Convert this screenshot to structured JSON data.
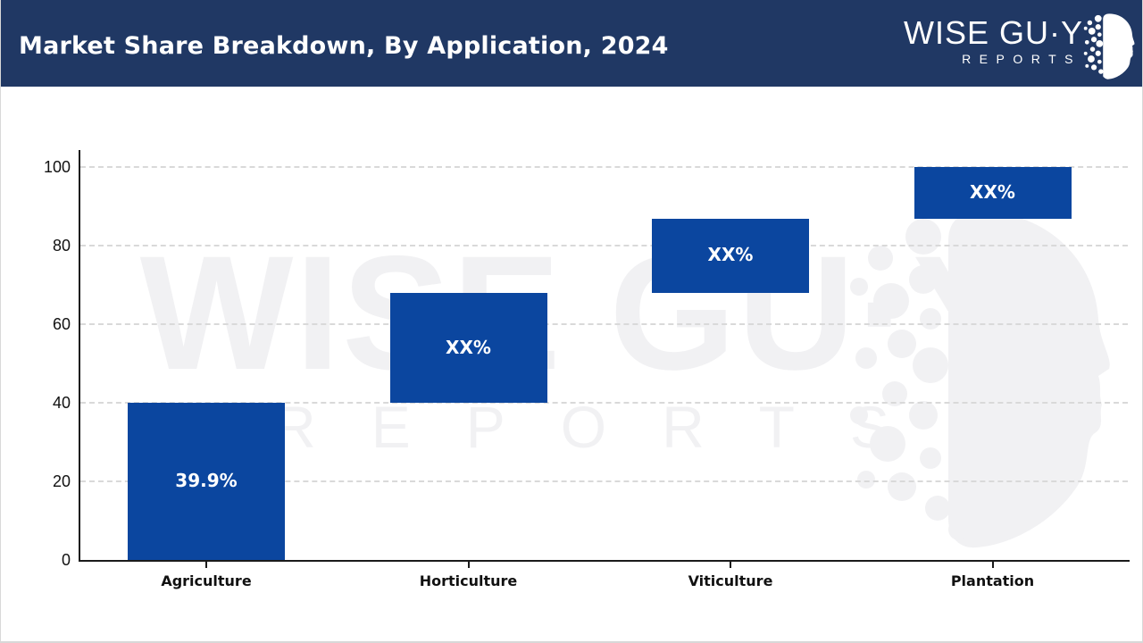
{
  "header": {
    "title": "Market Share Breakdown, By Application, 2024",
    "logo": {
      "line1": "WISE GU·Y",
      "line2": "REPORTS"
    }
  },
  "watermark": {
    "line1": "WISE GU·Y",
    "line2": "REPORTS"
  },
  "colors": {
    "header_bg": "#203864",
    "bar": "#0b469f",
    "grid": "#d9d9d9",
    "axis": "#1a1a1a",
    "watermark": "#f1f1f3",
    "title_text": "#ffffff",
    "bar_label_text": "#ffffff"
  },
  "chart_data": {
    "type": "bar",
    "subtype": "waterfall",
    "title": "Market Share Breakdown, By Application, 2024",
    "categories": [
      "Agriculture",
      "Horticulture",
      "Viticulture",
      "Plantation"
    ],
    "segments": [
      {
        "category": "Agriculture",
        "start": 0,
        "end": 39.9,
        "label": "39.9%"
      },
      {
        "category": "Horticulture",
        "start": 39.9,
        "end": 68.0,
        "label": "XX%"
      },
      {
        "category": "Viticulture",
        "start": 68.0,
        "end": 86.9,
        "label": "XX%"
      },
      {
        "category": "Plantation",
        "start": 86.9,
        "end": 100,
        "label": "XX%"
      }
    ],
    "yticks": [
      0,
      20,
      40,
      60,
      80,
      100
    ],
    "ylim": [
      0,
      104
    ],
    "xlabel": "",
    "ylabel": "",
    "grid": "horizontal-dashed",
    "legend": "none",
    "bar_color": "#0b469f"
  }
}
